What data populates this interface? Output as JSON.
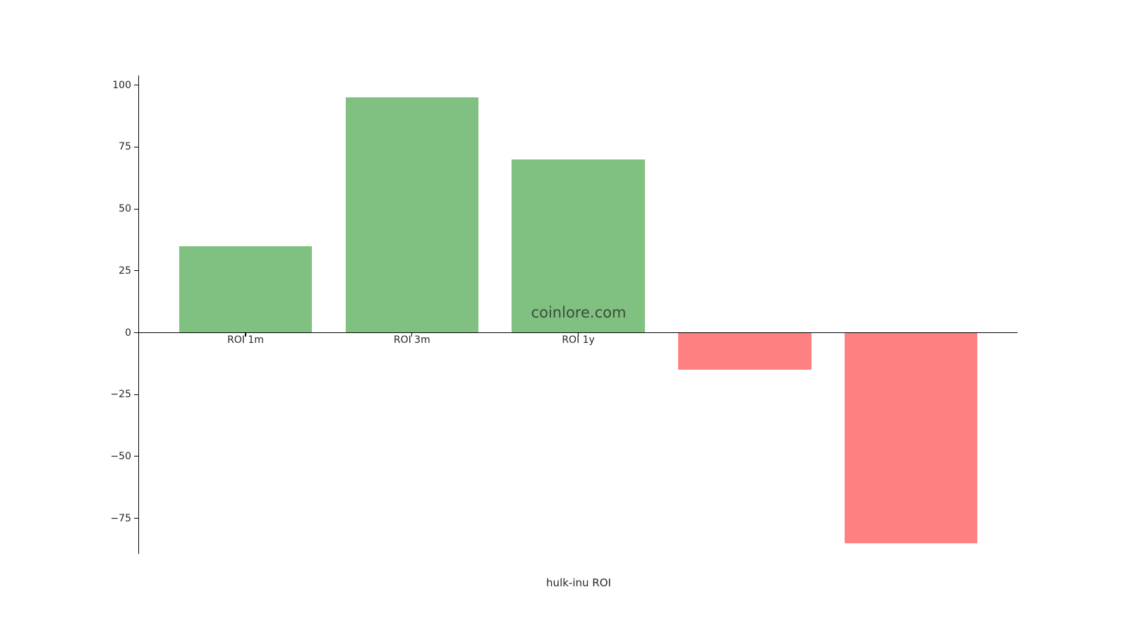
{
  "chart_data": {
    "type": "bar",
    "title": "hulk-inu ROI",
    "watermark": "coinlore.com",
    "categories": [
      "ROI 1m",
      "ROI 3m",
      "ROI 1y",
      "",
      ""
    ],
    "values": [
      35,
      95,
      70,
      -15,
      -85
    ],
    "x_tick_labels_visible": [
      true,
      true,
      true,
      false,
      false
    ],
    "positive_color": "#80c080",
    "negative_color": "#ff8080",
    "yticks": [
      {
        "label": "100",
        "value": 100
      },
      {
        "label": "75",
        "value": 75
      },
      {
        "label": "50",
        "value": 50
      },
      {
        "label": "25",
        "value": 25
      },
      {
        "label": "0",
        "value": 0
      },
      {
        "label": "−25",
        "value": -25
      },
      {
        "label": "−50",
        "value": -50
      },
      {
        "label": "−75",
        "value": -75
      }
    ],
    "ylim": [
      -89.5,
      104.3
    ],
    "xlabel": "",
    "ylabel": "",
    "grid": false,
    "legend": false,
    "axis_color": "#000000"
  }
}
